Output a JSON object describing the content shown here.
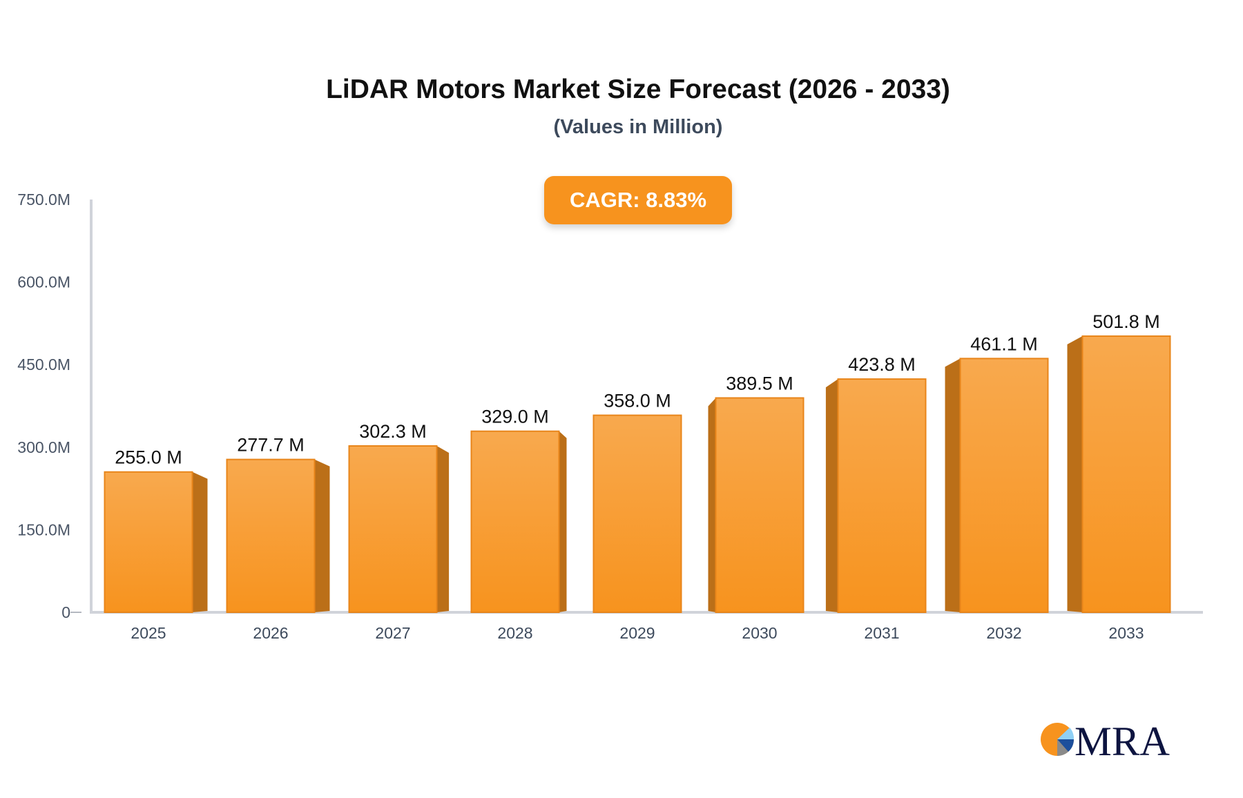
{
  "chart_data": {
    "type": "bar",
    "title": "LiDAR Motors Market Size Forecast (2026 - 2033)",
    "subtitle": "(Values in Million)",
    "annotation": "CAGR: 8.83%",
    "categories": [
      "2025",
      "2026",
      "2027",
      "2028",
      "2029",
      "2030",
      "2031",
      "2032",
      "2033"
    ],
    "values": [
      255.0,
      277.7,
      302.3,
      329.0,
      358.0,
      389.5,
      423.8,
      461.1,
      501.8
    ],
    "data_labels": [
      "255.0 M",
      "277.7 M",
      "302.3 M",
      "329.0 M",
      "358.0 M",
      "389.5 M",
      "423.8 M",
      "461.1 M",
      "501.8 M"
    ],
    "yticks": [
      0,
      150,
      300,
      450,
      600,
      750
    ],
    "ytick_labels": [
      "0",
      "150.0M",
      "300.0M",
      "450.0M",
      "600.0M",
      "750.0M"
    ],
    "ylim": [
      0,
      750
    ],
    "xlabel": "",
    "ylabel": "",
    "grid": false,
    "colors": {
      "bar_top": "#f8a94e",
      "bar_bottom": "#f7931e",
      "bar_side": "#bb6f18",
      "axis": "#d0d3da"
    }
  },
  "logo": {
    "text": "MRA"
  }
}
